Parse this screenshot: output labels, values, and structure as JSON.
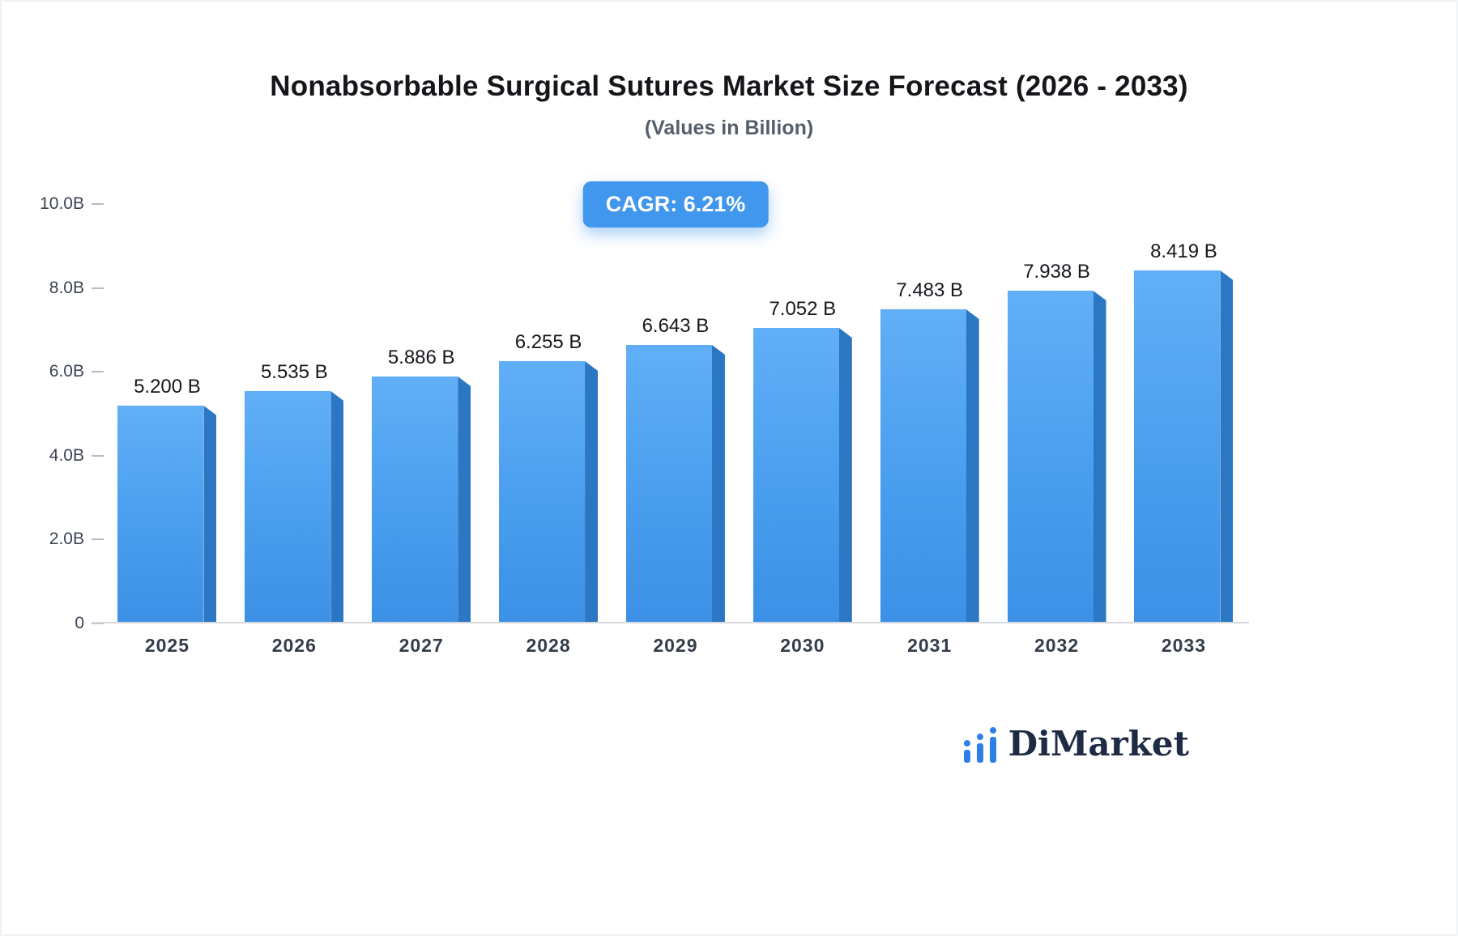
{
  "header": {
    "title": "Nonabsorbable Surgical Sutures Market Size Forecast (2026 - 2033)",
    "subtitle": "(Values in Billion)",
    "cagr_label": "CAGR: 6.21%"
  },
  "chart_data": {
    "type": "bar",
    "title": "Nonabsorbable Surgical Sutures Market Size Forecast (2026 - 2033)",
    "subtitle": "(Values in Billion)",
    "annotation": "CAGR: 6.21%",
    "categories": [
      "2025",
      "2026",
      "2027",
      "2028",
      "2029",
      "2030",
      "2031",
      "2032",
      "2033"
    ],
    "values": [
      5.2,
      5.535,
      5.886,
      6.255,
      6.643,
      7.052,
      7.483,
      7.938,
      8.419
    ],
    "value_labels": [
      "5.200 B",
      "5.535 B",
      "5.886 B",
      "6.255 B",
      "6.643 B",
      "7.052 B",
      "7.483 B",
      "7.938 B",
      "8.419 B"
    ],
    "xlabel": "",
    "ylabel": "",
    "ylim": [
      0,
      10
    ],
    "yticks": [
      {
        "value": 0,
        "label": "0"
      },
      {
        "value": 2,
        "label": "2.0B"
      },
      {
        "value": 4,
        "label": "4.0B"
      },
      {
        "value": 6,
        "label": "6.0B"
      },
      {
        "value": 8,
        "label": "8.0B"
      },
      {
        "value": 10,
        "label": "10.0B"
      }
    ],
    "grid": false,
    "legend": "none",
    "bar_color": "#4A9EEE",
    "bar_side_color": "#2B77C4"
  },
  "logo": {
    "text": "DiMarket",
    "icon": "mini-bar-chart-icon",
    "icon_color": "#2E7FE8"
  },
  "colors": {
    "accent": "#4196EE",
    "title_text": "#14161a",
    "subtitle_text": "#555e6b",
    "axis_text": "#3b4453",
    "baseline": "#d5d9dd"
  }
}
